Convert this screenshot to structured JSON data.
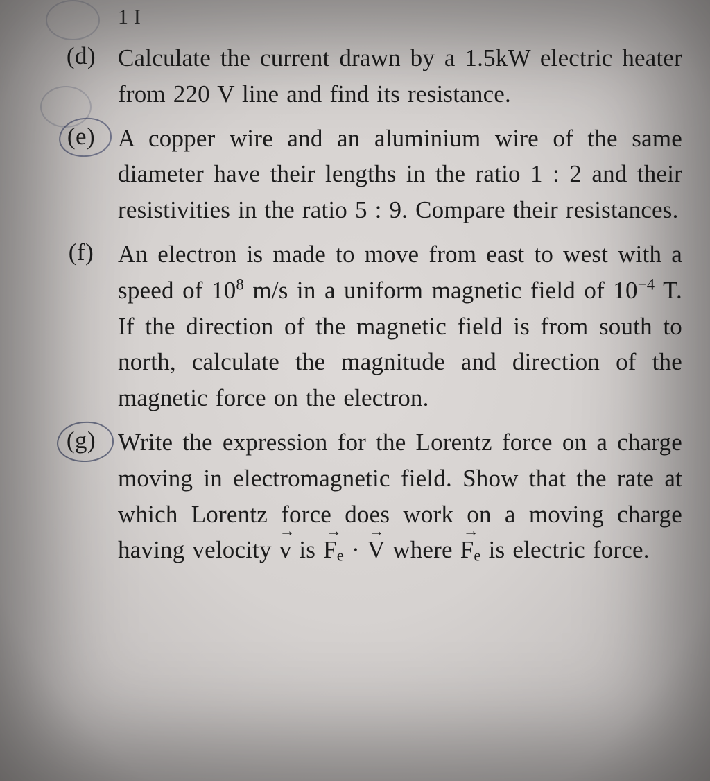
{
  "background": {
    "center_color": "#dedad8",
    "edge_color": "#5a5654",
    "text_color": "#1c1c1c",
    "pen_circle_color": "#2a3460"
  },
  "typography": {
    "body_font_family": "Times New Roman, serif",
    "body_fontsize_pt": 26,
    "marker_fontsize_pt": 26,
    "line_height": 1.48
  },
  "fragment_line": "1 I",
  "items": [
    {
      "marker": "(d)",
      "circled": false,
      "faint_ring": true,
      "text": "Calculate the current drawn by a 1.5kW electric heater from 220 V line and find its resistance."
    },
    {
      "marker": "(e)",
      "circled": true,
      "text": "A copper wire and an aluminium wire of the same diameter have their lengths in the ratio 1 : 2 and their resistivities in the ratio 5 : 9. Compare their resistances."
    },
    {
      "marker": "(f)",
      "circled": false,
      "text_html": "An electron is made to move from east to west with a speed of 10<sup>8</sup> m/s in a uniform magnetic field of 10<sup>&#8722;4</sup> T. If the direction of the magnetic field is from south to north, calculate the magnitude and direction of the magnetic force on the electron."
    },
    {
      "marker": "(g)",
      "circled": true,
      "text_html": "Write the expression for the Lorentz force on a charge moving in electromagnetic field. Show that the rate at which Lorentz force does work on a moving charge having velocity <span class=\"vec nowrap\"><span class=\"arrow\">&#8594;</span>v</span> is <span class=\"nowrap\"><span class=\"vec\"><span class=\"arrow\">&#8594;</span>F<sub>e</sub></span> &#183; <span class=\"vec\"><span class=\"arrow\">&#8594;</span>V</span></span> where <span class=\"vec nowrap\"><span class=\"arrow\">&#8594;</span>F<sub>e</sub></span> is electric force."
    }
  ]
}
